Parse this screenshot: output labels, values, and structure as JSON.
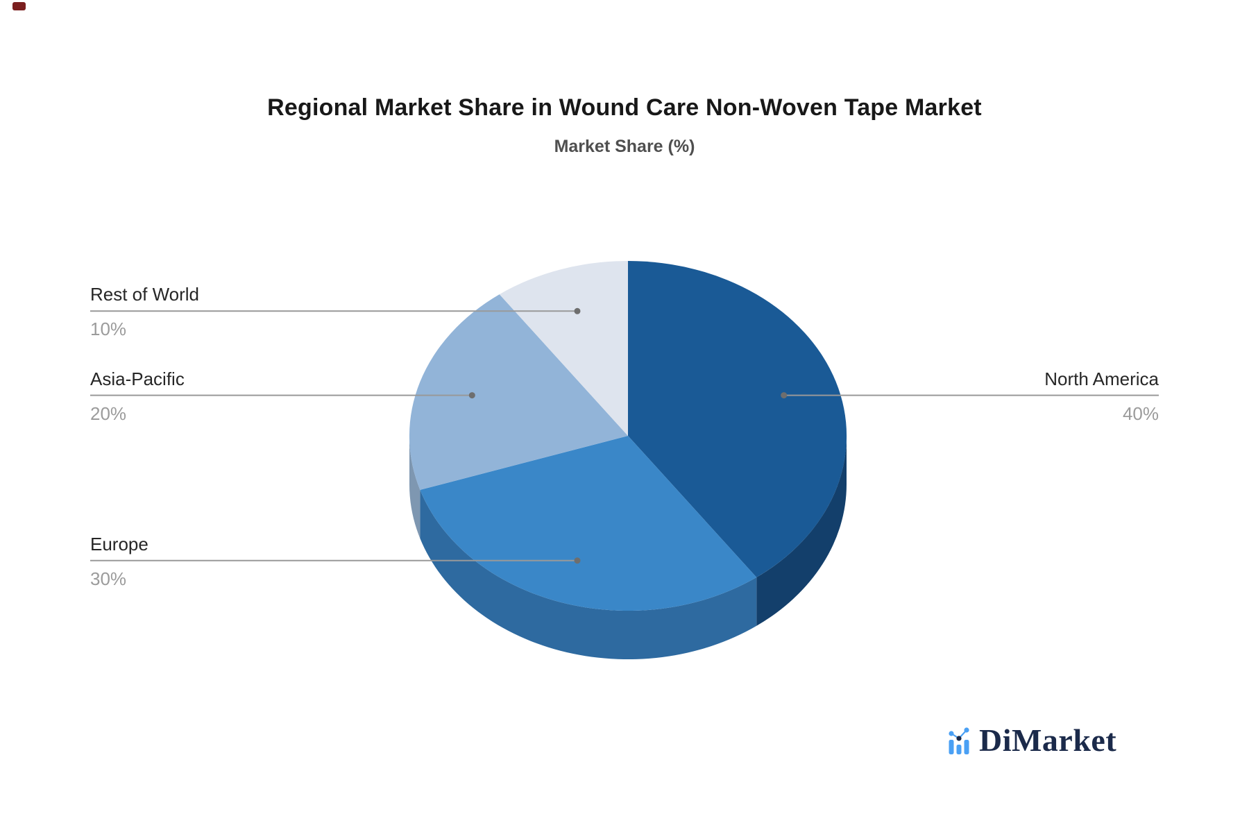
{
  "page": {
    "background": "#ffffff",
    "corner_marker_color": "#7b1f1f"
  },
  "header": {
    "title": "Regional Market Share in Wound Care Non-Woven Tape Market",
    "subtitle": "Market Share (%)"
  },
  "chart_data": {
    "type": "pie",
    "title": "Regional Market Share in Wound Care Non-Woven Tape Market",
    "subtitle": "Market Share (%)",
    "unit": "%",
    "style": "3d",
    "start_angle_deg": -90,
    "direction": "clockwise",
    "legend_position": "connector-labels",
    "slices": [
      {
        "label": "North America",
        "value": 40,
        "color": "#1A5A96",
        "side_color": "#133F6B"
      },
      {
        "label": "Europe",
        "value": 30,
        "color": "#3A87C8",
        "side_color": "#2E6AA0"
      },
      {
        "label": "Asia-Pacific",
        "value": 20,
        "color": "#92B4D8",
        "side_color": "#7E97B1"
      },
      {
        "label": "Rest of World",
        "value": 10,
        "color": "#DEE4EE",
        "side_color": "#B4BBC6"
      }
    ],
    "connector": {
      "line_color": "#999999",
      "dot_color": "#6e6e6e"
    }
  },
  "logo": {
    "text": "DiMarket",
    "text_color": "#1B2A4A",
    "icon_bar_color": "#4AA0F4",
    "icon_dot_dark_color": "#1B2A4A"
  }
}
